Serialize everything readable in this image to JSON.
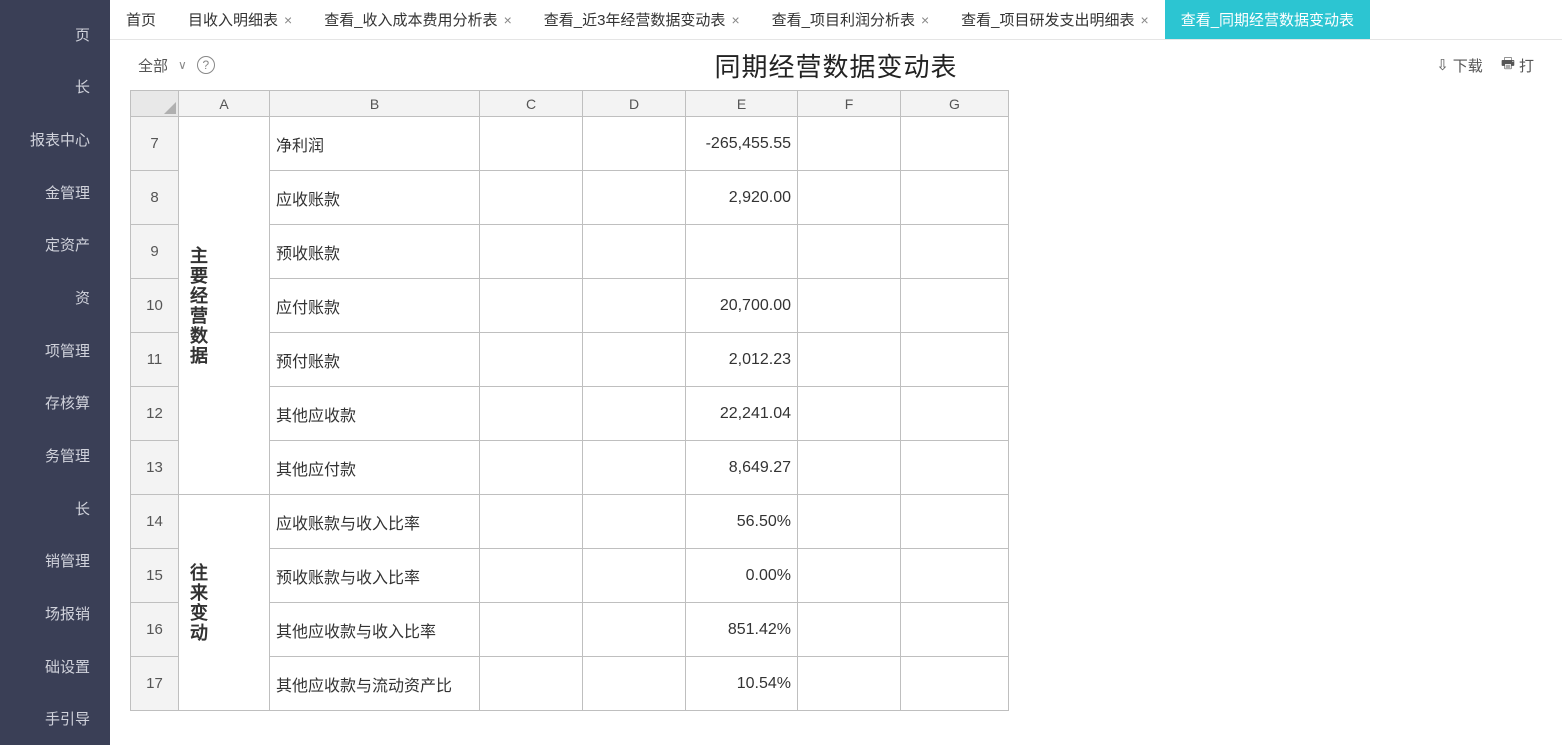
{
  "sidebar": {
    "items": [
      {
        "label": "页"
      },
      {
        "label": "长"
      },
      {
        "label": "报表中心"
      },
      {
        "label": "金管理"
      },
      {
        "label": "定资产"
      },
      {
        "label": "资"
      },
      {
        "label": "项管理"
      },
      {
        "label": "存核算"
      },
      {
        "label": "务管理"
      },
      {
        "label": "长"
      },
      {
        "label": "销管理"
      },
      {
        "label": "场报销"
      },
      {
        "label": "础设置"
      },
      {
        "label": "手引导"
      }
    ]
  },
  "tabs": [
    {
      "label": "首页",
      "closable": false,
      "active": false
    },
    {
      "label": "目收入明细表",
      "closable": true,
      "active": false
    },
    {
      "label": "查看_收入成本费用分析表",
      "closable": true,
      "active": false
    },
    {
      "label": "查看_近3年经营数据变动表",
      "closable": true,
      "active": false
    },
    {
      "label": "查看_项目利润分析表",
      "closable": true,
      "active": false
    },
    {
      "label": "查看_项目研发支出明细表",
      "closable": true,
      "active": false
    },
    {
      "label": "查看_同期经营数据变动表",
      "closable": false,
      "active": true
    }
  ],
  "toolbar": {
    "filter_label": "全部",
    "title": "同期经营数据变动表",
    "download_label": "下载",
    "print_label": "打"
  },
  "sheet": {
    "columns": [
      "A",
      "B",
      "C",
      "D",
      "E",
      "F",
      "G"
    ],
    "group1_label": "主要经营数据",
    "group2_label": "往来变动",
    "rows": [
      {
        "num": "7",
        "b": "净利润",
        "e": "-265,455.55",
        "section": 1,
        "first": true
      },
      {
        "num": "8",
        "b": "应收账款",
        "e": "2,920.00",
        "section": 1
      },
      {
        "num": "9",
        "b": "预收账款",
        "e": "",
        "section": 1
      },
      {
        "num": "10",
        "b": "应付账款",
        "e": "20,700.00",
        "section": 1
      },
      {
        "num": "11",
        "b": "预付账款",
        "e": "2,012.23",
        "section": 1
      },
      {
        "num": "12",
        "b": "其他应收款",
        "e": "22,241.04",
        "section": 1
      },
      {
        "num": "13",
        "b": "其他应付款",
        "e": "8,649.27",
        "section": 1,
        "last": true
      },
      {
        "num": "14",
        "b": "应收账款与收入比率",
        "e": "56.50%",
        "section": 2,
        "first": true
      },
      {
        "num": "15",
        "b": "预收账款与收入比率",
        "e": "0.00%",
        "section": 2
      },
      {
        "num": "16",
        "b": "其他应收款与收入比率",
        "e": "851.42%",
        "section": 2
      },
      {
        "num": "17",
        "b": "其他应收款与流动资产比",
        "e": "10.54%",
        "section": 2
      }
    ]
  }
}
